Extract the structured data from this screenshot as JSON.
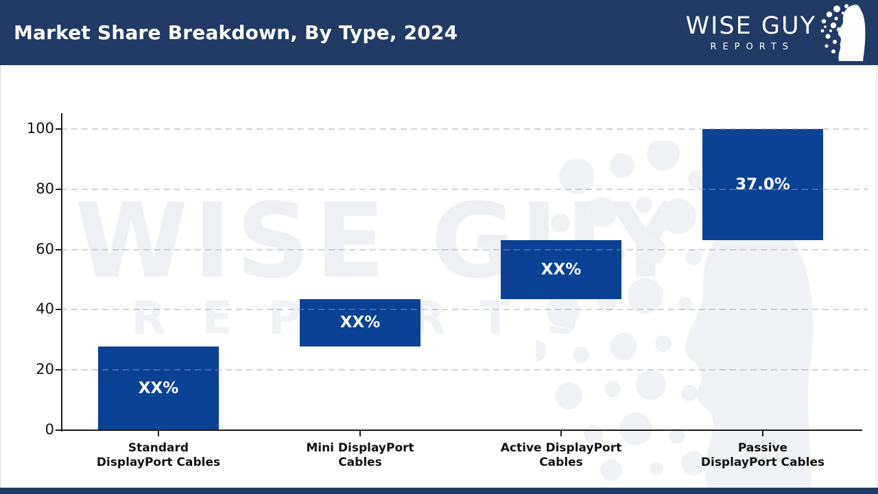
{
  "header": {
    "title": "Market Share Breakdown, By Type, 2024",
    "logo": {
      "name": "WISE GUY",
      "sub": "REPORTS"
    }
  },
  "watermark": {
    "name": "WISE GUY",
    "sub": "REPORTS"
  },
  "chart_data": {
    "type": "bar",
    "subtype": "waterfall",
    "title": "Market Share Breakdown, By Type, 2024",
    "categories": [
      [
        "Standard",
        "DisplayPort Cables"
      ],
      [
        "Mini DisplayPort",
        "Cables"
      ],
      [
        "Active DisplayPort",
        "Cables"
      ],
      [
        "Passive",
        "DisplayPort Cables"
      ]
    ],
    "segments": [
      {
        "label": "XX%",
        "start": 0.0,
        "end": 27.7
      },
      {
        "label": "XX%",
        "start": 27.9,
        "end": 43.5
      },
      {
        "label": "XX%",
        "start": 43.5,
        "end": 63.2
      },
      {
        "label": "37.0%",
        "start": 63.0,
        "end": 100.0
      }
    ],
    "ylim": [
      0,
      100
    ],
    "yticks": [
      0,
      20,
      40,
      60,
      80,
      100
    ],
    "grid": true,
    "legend_position": "none",
    "bar_color": "#0b4295",
    "value_label_color": "#ffffff"
  },
  "colors": {
    "header_bg": "#213a66",
    "footer_bg": "#213a66",
    "bar": "#0b4295",
    "grid": "#d6d9de",
    "axis": "#1a1a1a",
    "watermark": "#eef0f4"
  }
}
